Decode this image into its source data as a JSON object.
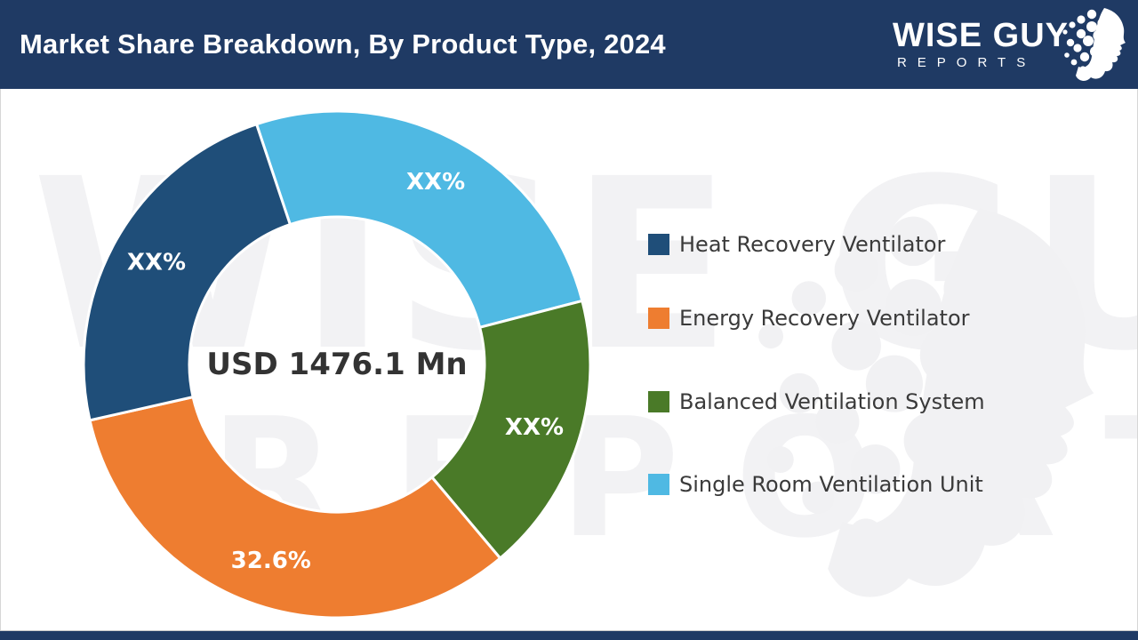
{
  "header": {
    "title": "Market Share Breakdown, By Product Type, 2024",
    "logo": {
      "line1": "WISE GUY",
      "line2": "REPORTS"
    }
  },
  "watermark": {
    "line1": "WISE GUY",
    "line2": "REPORTS"
  },
  "chart_data": {
    "type": "donut",
    "title": "Market Share Breakdown, By Product Type, 2024",
    "center_label": "USD 1476.1 Mn",
    "start_angle_clockwise_from_north_deg": -18.5,
    "segments": [
      {
        "name": "Single Room Ventilation Unit",
        "pct": 26.1,
        "display_label": "XX%",
        "color": "#4fb9e3"
      },
      {
        "name": "Balanced Ventilation System",
        "pct": 17.9,
        "display_label": "XX%",
        "color": "#4a7a28"
      },
      {
        "name": "Energy Recovery Ventilator",
        "pct": 32.6,
        "display_label": "32.6%",
        "color": "#ee7d30"
      },
      {
        "name": "Heat Recovery Ventilator",
        "pct": 23.4,
        "display_label": "XX%",
        "color": "#1f4e79"
      }
    ]
  },
  "legend": {
    "items": [
      {
        "label": "Heat Recovery Ventilator",
        "color": "#1f4e79"
      },
      {
        "label": "Energy Recovery Ventilator",
        "color": "#ee7d30"
      },
      {
        "label": "Balanced Ventilation System",
        "color": "#4a7a28"
      },
      {
        "label": "Single Room Ventilation Unit",
        "color": "#4fb9e3"
      }
    ]
  },
  "colors": {
    "header_bg": "#1f3a64",
    "footer_bg": "#1f3a64",
    "center_text": "#333333",
    "legend_text": "#3a3a3a",
    "segment_label": "#ffffff",
    "segment_separator": "#ffffff",
    "watermark": "#f2f2f4"
  }
}
